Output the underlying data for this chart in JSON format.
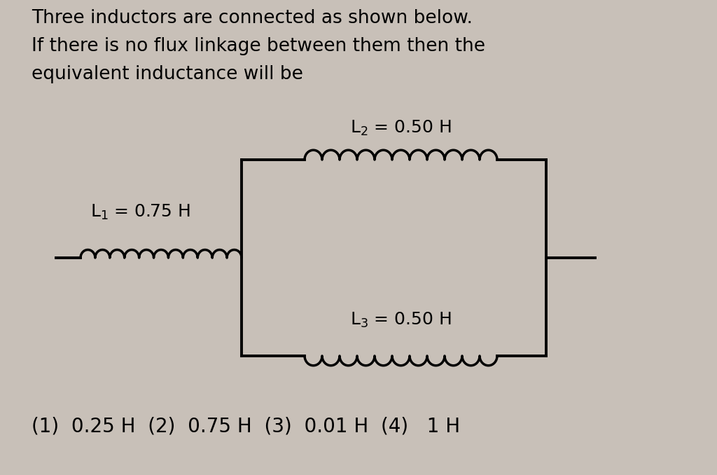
{
  "background_color": "#c8c0b8",
  "text_color": "#000000",
  "title_line1": "Three inductors are connected as shown below.",
  "title_line2": "If there is no flux linkage between them then the",
  "title_line3": "equivalent inductance will be",
  "options": "(1)  0.25 H  (2)  0.75 H  (3)  0.01 H  (4)   1 H",
  "font_size_title": 19,
  "font_size_label": 16,
  "font_size_options": 20,
  "line_color": "#000000",
  "coil_color": "#000000",
  "lw_circuit": 2.8
}
